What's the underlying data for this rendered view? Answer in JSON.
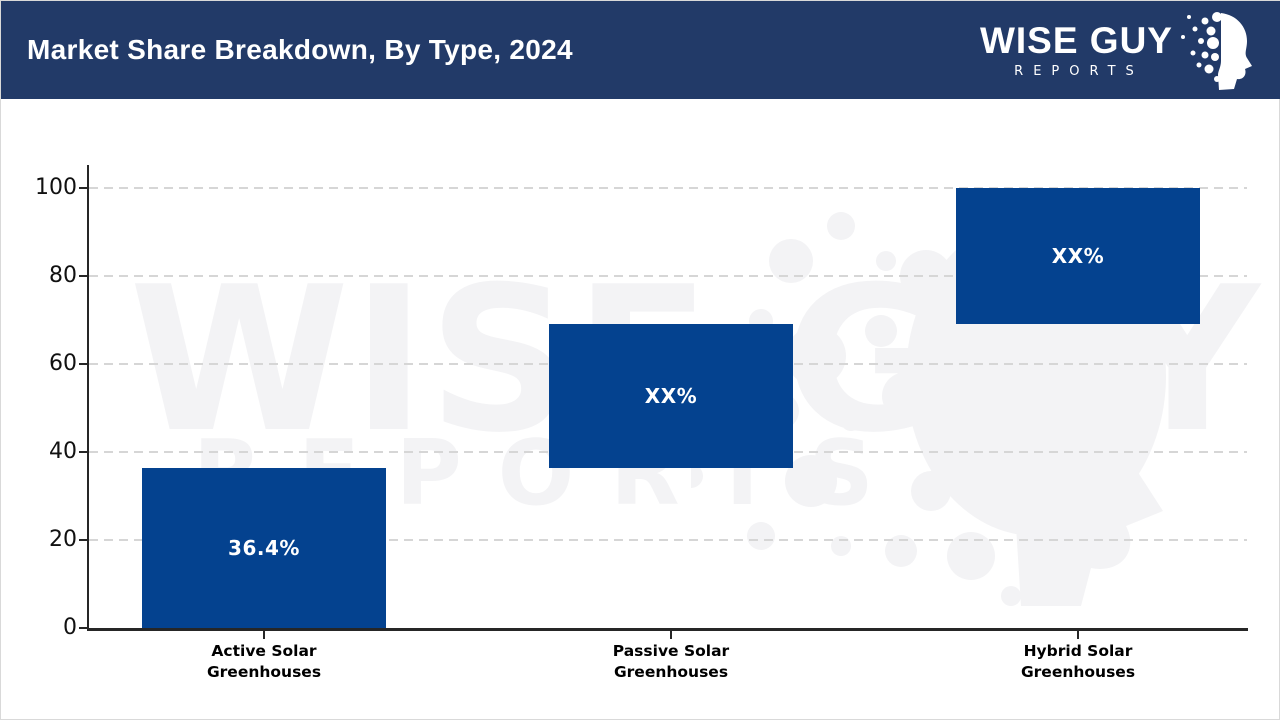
{
  "header": {
    "title": "Market Share Breakdown, By Type, 2024",
    "logo": {
      "wordmark": "WISE GUY",
      "subtext": "REPORTS"
    }
  },
  "watermark": {
    "line1": "WISE GUY",
    "line2": "REPORTS"
  },
  "chart_data": {
    "type": "bar",
    "variant": "waterfall",
    "title": "Market Share Breakdown, By Type, 2024",
    "categories": [
      "Active Solar\nGreenhouses",
      "Passive Solar\nGreenhouses",
      "Hybrid Solar\nGreenhouses"
    ],
    "segments": [
      {
        "category": "Active Solar Greenhouses",
        "start": 0,
        "end": 36.4,
        "label": "36.4%"
      },
      {
        "category": "Passive Solar Greenhouses",
        "start": 36.4,
        "end": 69,
        "label": "XX%"
      },
      {
        "category": "Hybrid Solar Greenhouses",
        "start": 69,
        "end": 100,
        "label": "XX%"
      }
    ],
    "xlabel": "",
    "ylabel": "",
    "ylim": [
      0,
      105
    ],
    "yticks": [
      0,
      20,
      40,
      60,
      80,
      100
    ],
    "grid": "horizontal-dashed",
    "legend": "none",
    "bar_color": "#04428f",
    "bar_label_color": "#ffffff"
  },
  "colors": {
    "header_bg": "#223a68",
    "bar": "#04428f",
    "gridline": "#d6d6d6",
    "axis": "#262626",
    "watermark": "#f3f3f5"
  }
}
